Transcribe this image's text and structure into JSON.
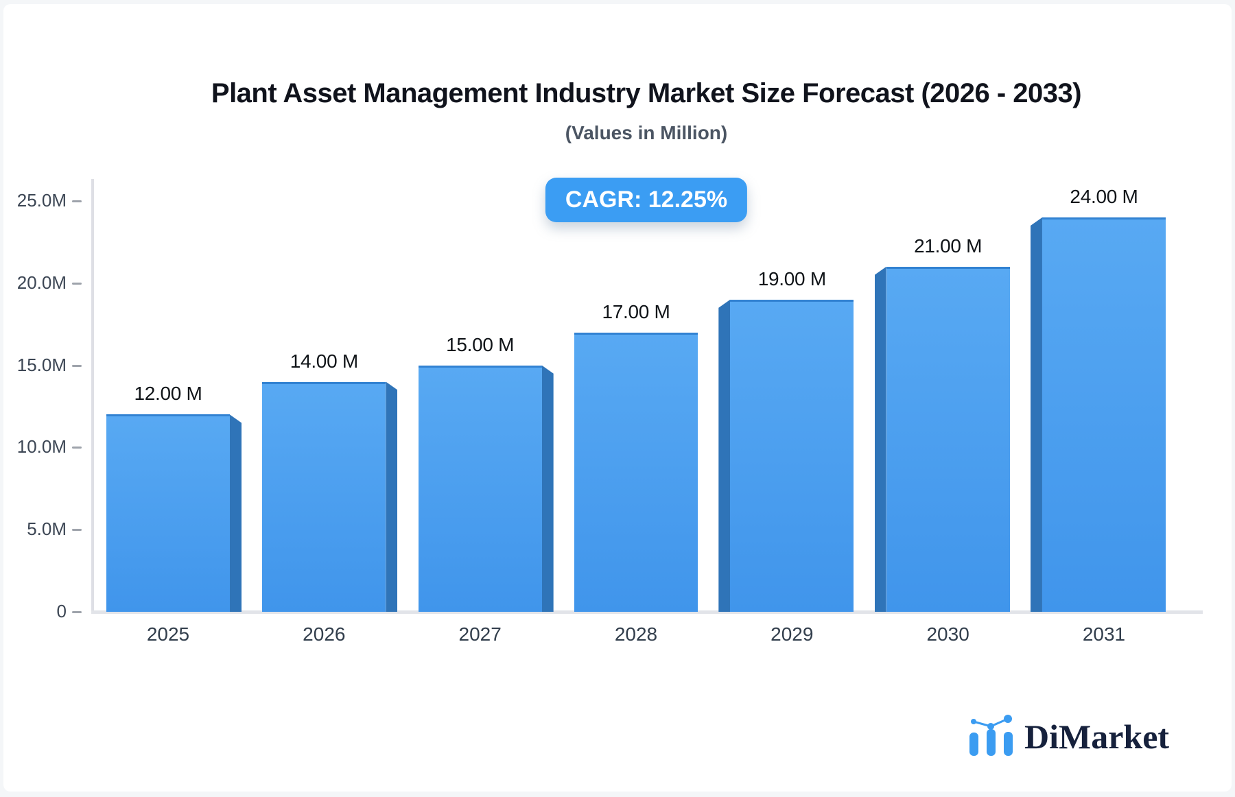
{
  "header": {
    "title": "Plant Asset Management Industry Market Size Forecast (2026 - 2033)",
    "subtitle": "(Values in Million)"
  },
  "badge": {
    "label": "CAGR: 12.25%",
    "cagr": "12.25%",
    "bg_color": "#3b9df3",
    "text_color": "#ffffff"
  },
  "chart_data": {
    "type": "bar",
    "title": "Plant Asset Management Industry Market Size Forecast (2026 - 2033)",
    "subtitle": "(Values in Million)",
    "unit": "Million",
    "categories": [
      "2025",
      "2026",
      "2027",
      "2028",
      "2029",
      "2030",
      "2031"
    ],
    "values": [
      12,
      14,
      15,
      17,
      19,
      21,
      24
    ],
    "value_labels": [
      "12.00 M",
      "14.00 M",
      "15.00 M",
      "17.00 M",
      "19.00 M",
      "21.00 M",
      "24.00 M"
    ],
    "ylim": [
      0,
      25
    ],
    "yticks": [
      {
        "value": 25,
        "label": "25.0M"
      },
      {
        "value": 20,
        "label": "20.0M"
      },
      {
        "value": 15,
        "label": "15.0M"
      },
      {
        "value": 10,
        "label": "10.0M"
      },
      {
        "value": 5,
        "label": "5.0M"
      },
      {
        "value": 0,
        "label": "0"
      }
    ],
    "grid": false,
    "legend": false,
    "bar_color_top": "#58a9f3",
    "bar_color_bottom": "#4095eb",
    "bar_side_color": "#2f74b8",
    "style": "3d-bevel, side faces angled toward center bar"
  },
  "logo": {
    "text": "DiMarket",
    "text_color": "#16213c",
    "icon": "mini-bar-chart-with-line-dots",
    "icon_color": "#3b9cf1"
  }
}
